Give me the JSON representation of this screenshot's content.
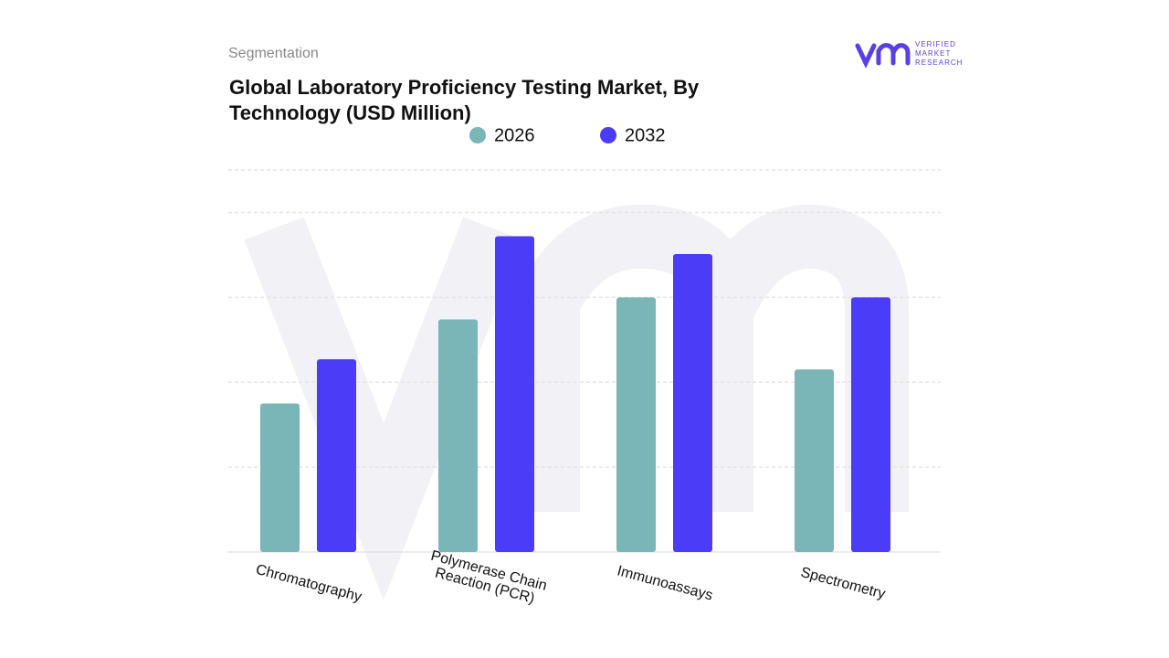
{
  "chart_data": {
    "type": "bar",
    "subtitle": "Segmentation",
    "title": "Global Laboratory Proficiency Testing Market, By Technology (USD Million)",
    "categories": [
      "Chromatography",
      "Polymerase Chain Reaction (PCR)",
      "Immunoassays",
      "Spectrometry"
    ],
    "series": [
      {
        "name": "2026",
        "color": "#7ab5b8",
        "values": [
          175,
          274,
          300,
          215
        ]
      },
      {
        "name": "2032",
        "color": "#4b3cf7",
        "values": [
          227,
          372,
          351,
          300
        ]
      }
    ],
    "ylim": [
      0,
      450
    ],
    "yticks": [
      0,
      100,
      200,
      300,
      400,
      450
    ],
    "grid": true
  },
  "brand": [
    "VERIFIED",
    "MARKET",
    "RESEARCH"
  ]
}
